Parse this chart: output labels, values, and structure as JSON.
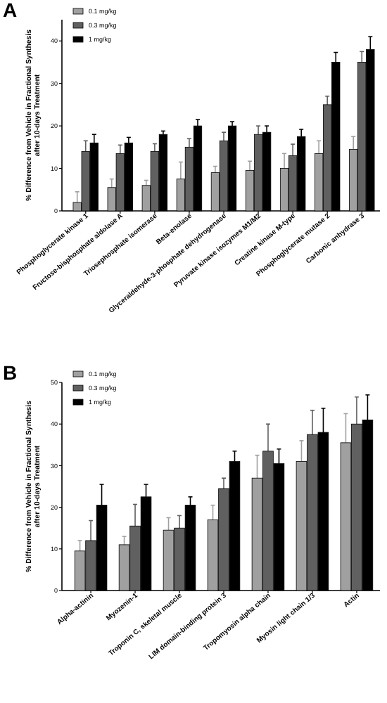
{
  "chart_data": [
    {
      "type": "bar",
      "title": "A",
      "ylabel": "% Difference from Vehicle in Fractional Synthesis\nafter 10-days Treatment",
      "categories": [
        "Phosphoglycerate kinase 1",
        "Fructose-bisphosphate aldolase A",
        "Triosephosphate isomerase",
        "Beta-enolase",
        "Glyceraldehyde-3-phosphate dehydrogenase",
        "Pyruvate kinase isozymes M1/M2",
        "Creatine kinase M-type",
        "Phosphoglycerate mutase 2",
        "Carbonic anhydrase 3"
      ],
      "series": [
        {
          "name": "0.1 mg/kg",
          "color": "#a0a0a0",
          "values": [
            2,
            5.5,
            6,
            7.5,
            9,
            9.5,
            10,
            13.5,
            14.5
          ],
          "errors": [
            2.5,
            2,
            1.2,
            4,
            1.5,
            2.2,
            3.5,
            3,
            3
          ]
        },
        {
          "name": "0.3 mg/kg",
          "color": "#606060",
          "values": [
            14,
            13.5,
            14,
            15,
            16.5,
            18,
            13,
            25,
            35
          ],
          "errors": [
            2.5,
            2,
            1.8,
            2,
            2,
            2,
            2.7,
            2,
            2.5
          ]
        },
        {
          "name": "1 mg/kg",
          "color": "#000000",
          "values": [
            16,
            16,
            18,
            20,
            20,
            18.5,
            17.5,
            35,
            38
          ],
          "errors": [
            2,
            1.3,
            0.8,
            1.5,
            1,
            1.5,
            1.7,
            2.3,
            3
          ]
        }
      ],
      "ylim": [
        0,
        45
      ],
      "yticks": [
        0,
        10,
        20,
        30,
        40
      ],
      "legend": "top left",
      "grid": false
    },
    {
      "type": "bar",
      "title": "B",
      "ylabel": "% Difference from Vehicle in Fractional Synthesis\nafter 10-days Treatment",
      "categories": [
        "Alpha-actinin",
        "Myozenin-1",
        "Troponin C, skeletal muscle",
        "LIM domain-binding protein 3",
        "Tropomyosin alpha chain",
        "Myosin light chain 1/3",
        "Actin"
      ],
      "series": [
        {
          "name": "0.1 mg/kg",
          "color": "#a0a0a0",
          "values": [
            9.5,
            11,
            14.5,
            17,
            27,
            31,
            35.5
          ],
          "errors": [
            2.5,
            2,
            3,
            3.5,
            5.5,
            5,
            7
          ]
        },
        {
          "name": "0.3 mg/kg",
          "color": "#606060",
          "values": [
            12,
            15.5,
            15,
            24.5,
            33.5,
            37.5,
            40
          ],
          "errors": [
            4.8,
            5.2,
            3,
            2.5,
            6.5,
            5.8,
            6.5
          ]
        },
        {
          "name": "1 mg/kg",
          "color": "#000000",
          "values": [
            20.5,
            22.5,
            20.5,
            31,
            30.5,
            38,
            41
          ],
          "errors": [
            5,
            3,
            2,
            2.5,
            3.5,
            5.8,
            6
          ]
        }
      ],
      "ylim": [
        0,
        50
      ],
      "yticks": [
        0,
        10,
        20,
        30,
        40,
        50
      ],
      "legend": "top left",
      "grid": false
    }
  ]
}
